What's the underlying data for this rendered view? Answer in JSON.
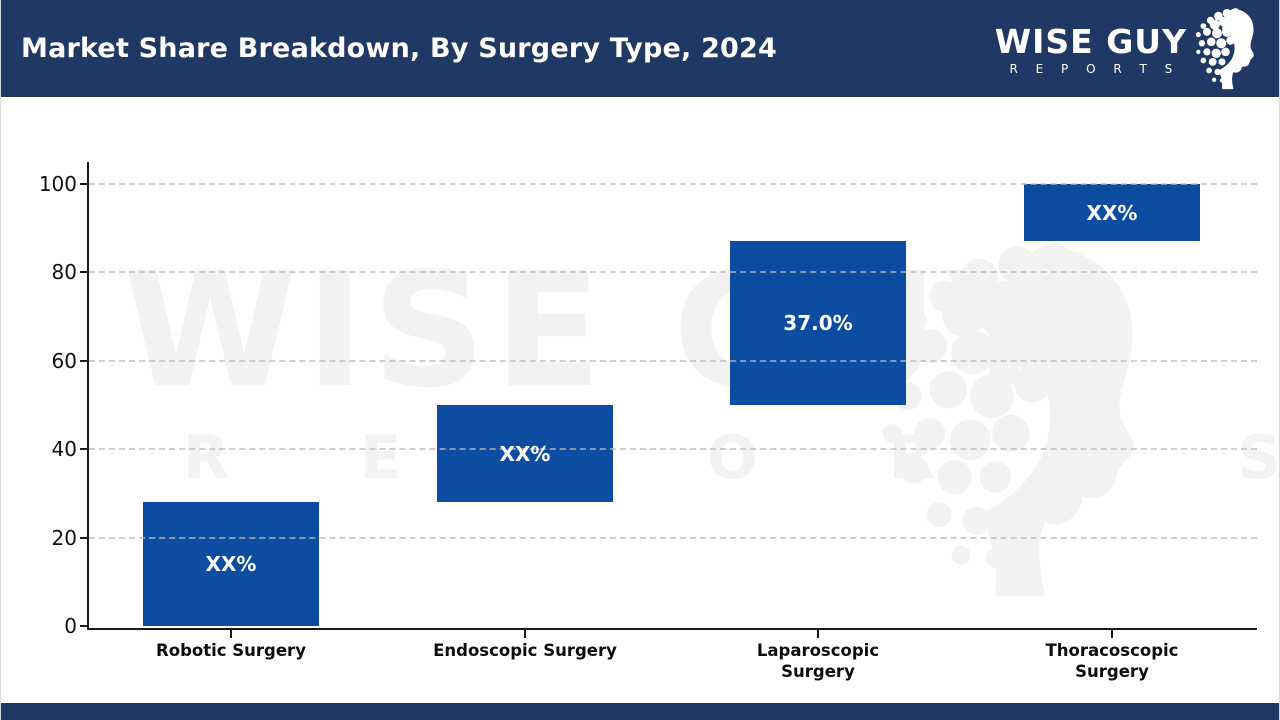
{
  "header": {
    "title": "Market Share Breakdown, By Surgery Type, 2024",
    "bg_color": "#203864",
    "logo": {
      "line1": "WISE GUY",
      "line2": "R E P O R T S"
    }
  },
  "watermark": {
    "line1": "WISE GUY",
    "line2": "R E P O R T S",
    "color": "#f2f2f2"
  },
  "footer": {
    "bg_color": "#203864"
  },
  "chart_data": {
    "type": "bar",
    "subtype": "waterfall",
    "title": "Market Share Breakdown, By Surgery Type, 2024",
    "categories": [
      "Robotic Surgery",
      "Endoscopic Surgery",
      "Laparoscopic\nSurgery",
      "Thoracoscopic\nSurgery"
    ],
    "segments": [
      {
        "category": "Robotic Surgery",
        "start": 0,
        "end": 28,
        "label": "XX%"
      },
      {
        "category": "Endoscopic Surgery",
        "start": 28,
        "end": 50,
        "label": "XX%"
      },
      {
        "category": "Laparoscopic Surgery",
        "start": 50,
        "end": 87,
        "label": "37.0%"
      },
      {
        "category": "Thoracoscopic Surgery",
        "start": 87,
        "end": 100,
        "label": "XX%"
      }
    ],
    "yticks": [
      0,
      20,
      40,
      60,
      80,
      100
    ],
    "ylim": [
      0,
      100
    ],
    "xlabel": "",
    "ylabel": "",
    "grid": "horizontal-dashed",
    "legend": "none",
    "bar_color": "#0d4da1",
    "bar_label_color": "#ffffff",
    "axis_color": "#1a1a1a"
  }
}
